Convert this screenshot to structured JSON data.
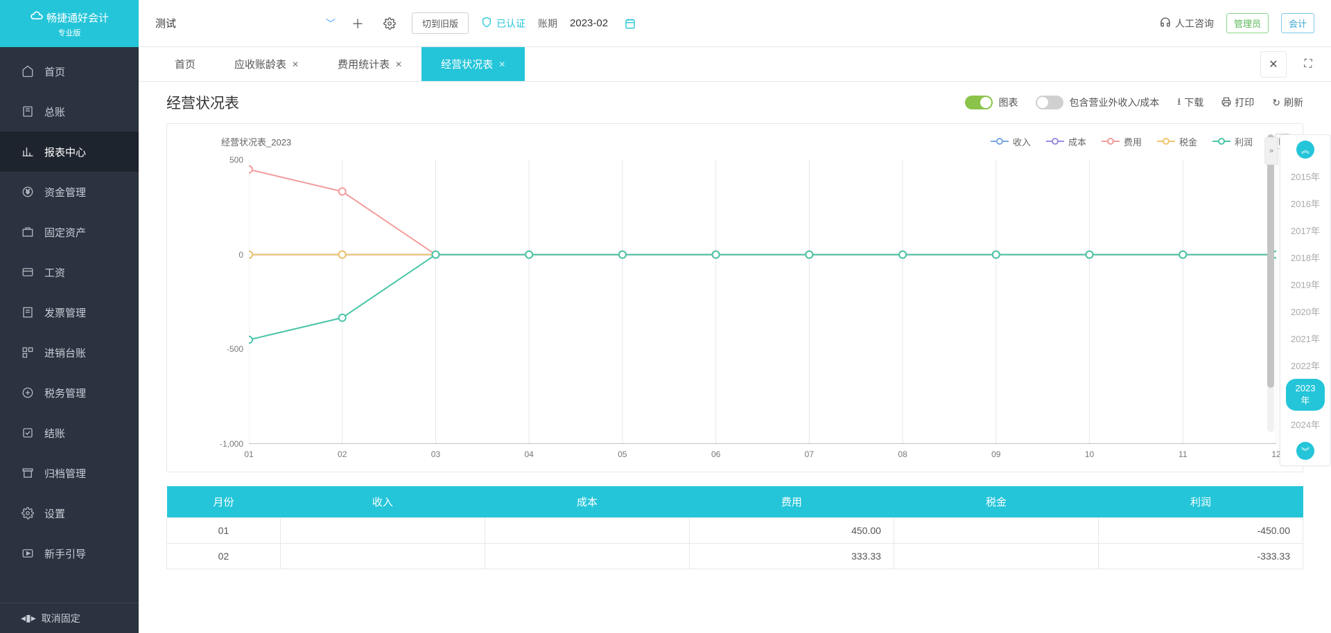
{
  "brand": {
    "name": "畅捷通好会计",
    "edition": "专业版"
  },
  "sidebar": {
    "items": [
      {
        "label": "首页",
        "icon": "home"
      },
      {
        "label": "总账",
        "icon": "ledger"
      },
      {
        "label": "报表中心",
        "icon": "chart",
        "active": true
      },
      {
        "label": "资金管理",
        "icon": "money"
      },
      {
        "label": "固定资产",
        "icon": "asset"
      },
      {
        "label": "工资",
        "icon": "salary"
      },
      {
        "label": "发票管理",
        "icon": "invoice"
      },
      {
        "label": "进销台账",
        "icon": "stock"
      },
      {
        "label": "税务管理",
        "icon": "tax"
      },
      {
        "label": "结账",
        "icon": "close-book"
      },
      {
        "label": "归档管理",
        "icon": "archive"
      },
      {
        "label": "设置",
        "icon": "gear"
      },
      {
        "label": "新手引导",
        "icon": "guide"
      }
    ],
    "footer": "取消固定"
  },
  "topbar": {
    "company": "测试",
    "switch_old": "切到旧版",
    "certified": "已认证",
    "period_label": "账期",
    "period_value": "2023-02",
    "consult": "人工咨询",
    "role1": "管理员",
    "role2": "会计"
  },
  "tabs": [
    {
      "label": "首页",
      "closable": false
    },
    {
      "label": "应收账龄表",
      "closable": true
    },
    {
      "label": "费用统计表",
      "closable": true
    },
    {
      "label": "经营状况表",
      "closable": true,
      "active": true
    }
  ],
  "page": {
    "title": "经营状况表",
    "toggle_chart": "图表",
    "toggle_revenue": "包含营业外收入/成本",
    "download": "下载",
    "print": "打印",
    "refresh": "刷新"
  },
  "chart": {
    "title": "经营状况表_2023",
    "type": "line",
    "x_categories": [
      "01",
      "02",
      "03",
      "04",
      "05",
      "06",
      "07",
      "08",
      "09",
      "10",
      "11",
      "12"
    ],
    "y_ticks": [
      500,
      0,
      -500,
      -1000
    ],
    "ylim": [
      -1000,
      500
    ],
    "plot_bg": "#ffffff",
    "grid_color": "#e5e7eb",
    "marker_size": 5,
    "line_width": 2,
    "series": [
      {
        "key": "income",
        "label": "收入",
        "color": "#7ba7e0",
        "values": [
          0,
          0,
          0,
          0,
          0,
          0,
          0,
          0,
          0,
          0,
          0,
          0
        ]
      },
      {
        "key": "cost",
        "label": "成本",
        "color": "#9b8be0",
        "values": [
          0,
          0,
          0,
          0,
          0,
          0,
          0,
          0,
          0,
          0,
          0,
          0
        ]
      },
      {
        "key": "expense",
        "label": "费用",
        "color": "#f39b9b",
        "values": [
          450,
          333.33,
          0,
          0,
          0,
          0,
          0,
          0,
          0,
          0,
          0,
          0
        ]
      },
      {
        "key": "tax",
        "label": "税金",
        "color": "#f0c56e",
        "values": [
          0,
          0,
          0,
          0,
          0,
          0,
          0,
          0,
          0,
          0,
          0,
          0
        ]
      },
      {
        "key": "profit",
        "label": "利润",
        "color": "#4ac5a8",
        "values": [
          -450,
          -333.33,
          0,
          0,
          0,
          0,
          0,
          0,
          0,
          0,
          0,
          0
        ]
      }
    ],
    "legend_save_aria": "保存"
  },
  "table": {
    "columns": [
      "月份",
      "收入",
      "成本",
      "费用",
      "税金",
      "利润"
    ],
    "col_widths": [
      "10%",
      "18%",
      "18%",
      "18%",
      "18%",
      "18%"
    ],
    "header_bg": "#24c5d9",
    "rows": [
      {
        "month": "01",
        "income": "",
        "cost": "",
        "expense": "450.00",
        "tax": "",
        "profit": "-450.00"
      },
      {
        "month": "02",
        "income": "",
        "cost": "",
        "expense": "333.33",
        "tax": "",
        "profit": "-333.33"
      }
    ]
  },
  "year_rail": {
    "years": [
      "2015年",
      "2016年",
      "2017年",
      "2018年",
      "2019年",
      "2020年",
      "2021年",
      "2022年",
      "2023年",
      "2024年"
    ],
    "active": "2023年"
  }
}
